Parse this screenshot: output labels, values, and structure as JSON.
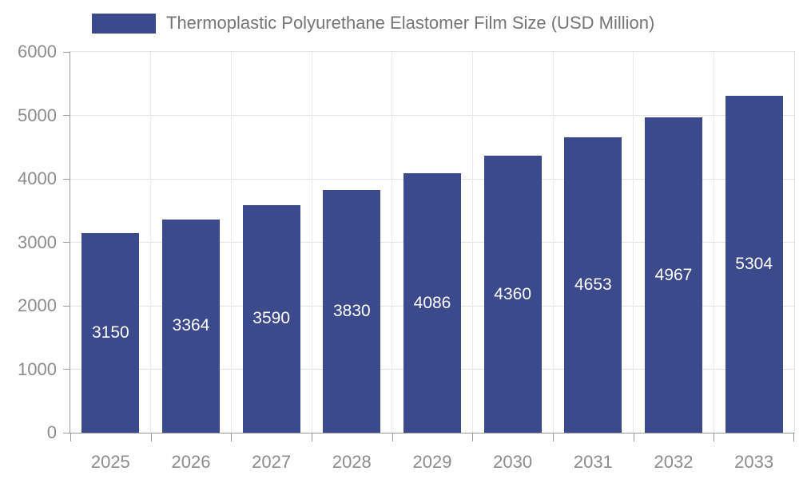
{
  "legend": {
    "label": "Thermoplastic Polyurethane Elastomer Film Size (USD Million)"
  },
  "chart_data": {
    "type": "bar",
    "title": "Thermoplastic Polyurethane Elastomer Film Size (USD Million)",
    "categories": [
      "2025",
      "2026",
      "2027",
      "2028",
      "2029",
      "2030",
      "2031",
      "2032",
      "2033"
    ],
    "values": [
      3150,
      3364,
      3590,
      3830,
      4086,
      4360,
      4653,
      4967,
      5304
    ],
    "xlabel": "",
    "ylabel": "",
    "ylim": [
      0,
      6000
    ],
    "ytick_step": 1000,
    "yticks": [
      0,
      1000,
      2000,
      3000,
      4000,
      5000,
      6000
    ],
    "grid": true,
    "legend_position": "top",
    "bar_color": "#3A4A8C",
    "value_label_color": "#FFFFFF",
    "axis_label_color": "#8C8C8C",
    "title_color": "#757575",
    "gridline_color": "#E3E3E3",
    "axis_line_color": "#9A9A9A"
  }
}
